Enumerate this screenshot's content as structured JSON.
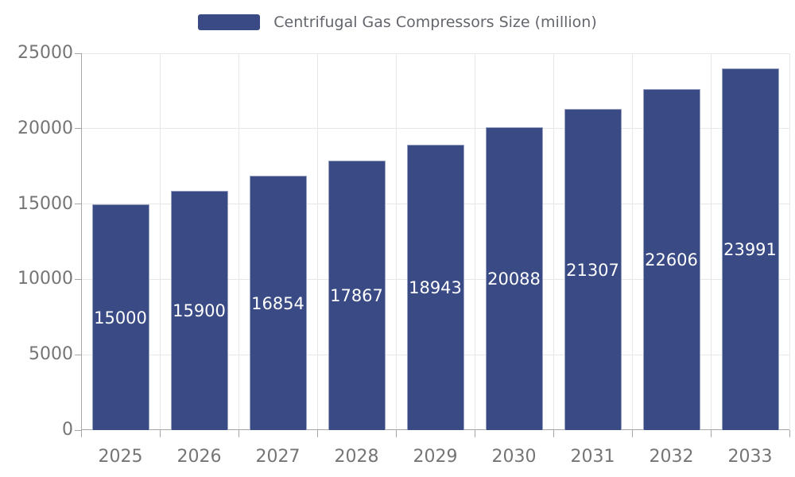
{
  "legend": {
    "label": "Centrifugal Gas Compressors Size (million)"
  },
  "colors": {
    "bar": "#394a85",
    "bar_border": "#9aa3c2",
    "grid": "#e7e7ea",
    "axis": "#a6a6a9",
    "tick_label": "#757575",
    "legend_text": "#63666c",
    "value_label": "#ffffff"
  },
  "chart_data": {
    "type": "bar",
    "title": "Centrifugal Gas Compressors Size (million)",
    "series_name": "Centrifugal Gas Compressors Size (million)",
    "categories": [
      "2025",
      "2026",
      "2027",
      "2028",
      "2029",
      "2030",
      "2031",
      "2032",
      "2033"
    ],
    "values": [
      15000,
      15900,
      16854,
      17867,
      18943,
      20088,
      21307,
      22606,
      23991
    ],
    "xlabel": "",
    "ylabel": "",
    "ylim": [
      0,
      25000
    ],
    "yticks": [
      0,
      5000,
      10000,
      15000,
      20000,
      25000
    ],
    "grid": true,
    "legend_position": "top-center",
    "value_labels": "inside-center-white"
  }
}
